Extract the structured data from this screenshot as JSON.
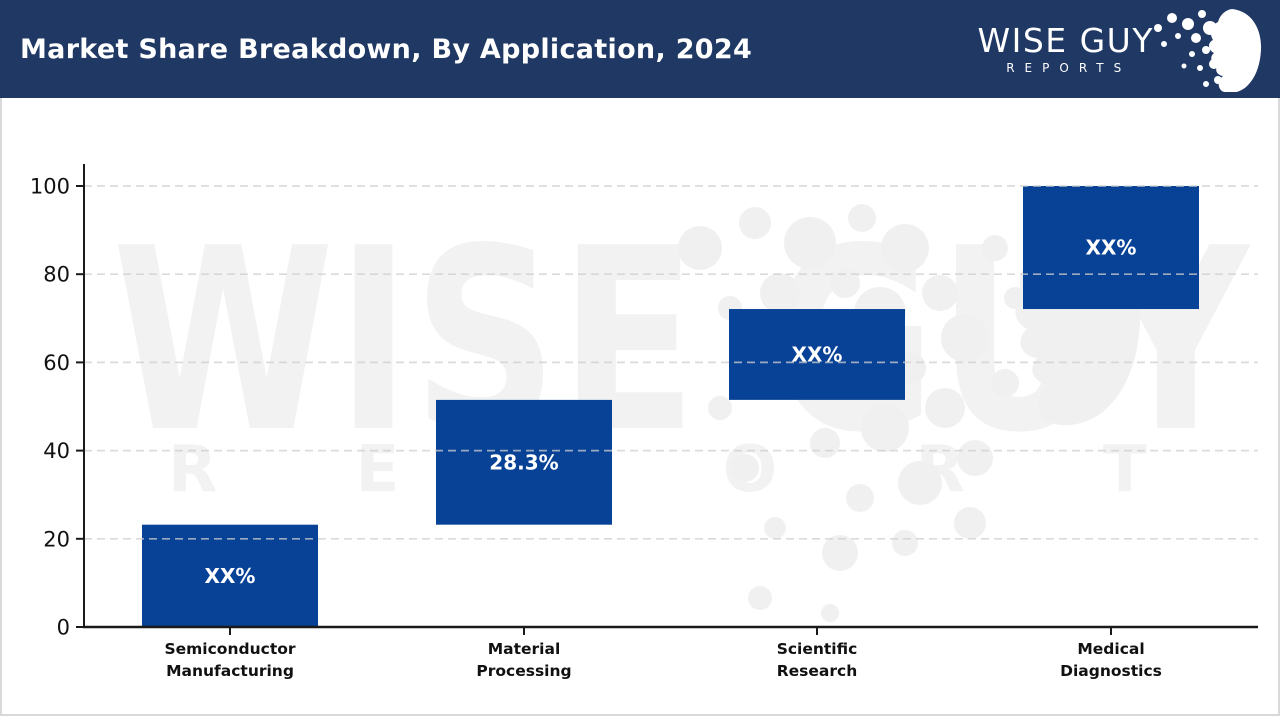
{
  "header": {
    "title": "Market Share Breakdown, By Application, 2024",
    "bg_color": "#1f3864",
    "logo": {
      "line1": "WISE GUY",
      "line2": "REPORTS"
    }
  },
  "watermark": {
    "line1": "WISE GUY",
    "line2": "R E P O R T S"
  },
  "chart_data": {
    "type": "bar",
    "subtype": "waterfall",
    "title": "Market Share Breakdown, By Application, 2024",
    "categories": [
      [
        "Semiconductor",
        "Manufacturing"
      ],
      [
        "Material",
        "Processing"
      ],
      [
        "Scientific",
        "Research"
      ],
      [
        "Medical",
        "Diagnostics"
      ]
    ],
    "bars": [
      {
        "start": 0,
        "end": 23.2,
        "label": "XX%"
      },
      {
        "start": 23.2,
        "end": 51.5,
        "label": "28.3%"
      },
      {
        "start": 51.5,
        "end": 72.1,
        "label": "XX%"
      },
      {
        "start": 72.1,
        "end": 100,
        "label": "XX%"
      }
    ],
    "xlabel": "",
    "ylabel": "",
    "yticks": [
      0,
      20,
      40,
      60,
      80,
      100
    ],
    "ylim": [
      0,
      104
    ],
    "grid": true,
    "legend_position": "none",
    "bar_color": "#084296",
    "bar_label_color": "#ffffff",
    "axis_color": "#1a1a1a",
    "tick_label_color": "#111111",
    "grid_color": "#cfcfcf"
  }
}
